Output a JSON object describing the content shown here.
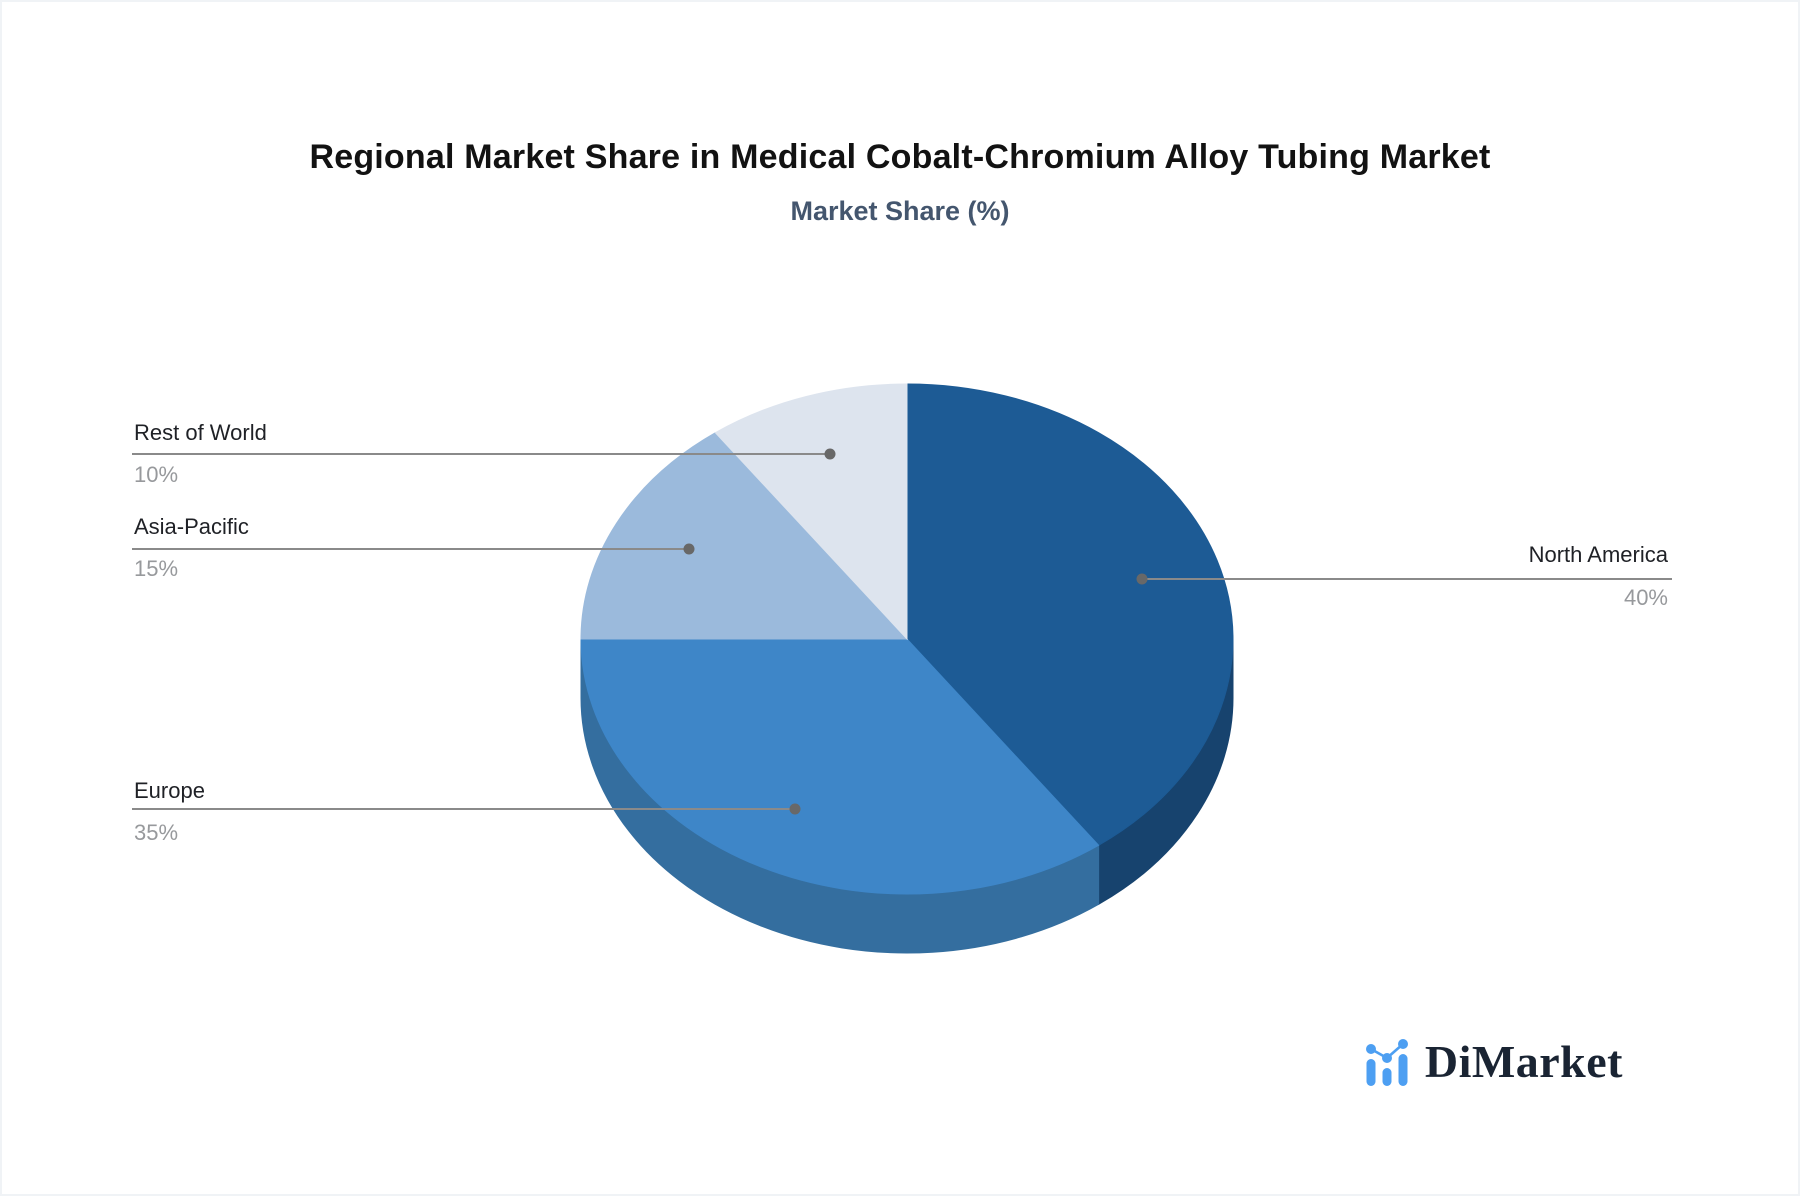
{
  "title": "Regional Market Share in Medical Cobalt-Chromium Alloy Tubing Market",
  "subtitle": "Market Share (%)",
  "brand": {
    "name": "DiMarket",
    "icon": "bar-line-chart-logo-icon",
    "icon_color": "#4d9ff2",
    "text_color": "#1a2433"
  },
  "chart_data": {
    "type": "pie",
    "title": "Regional Market Share in Medical Cobalt-Chromium Alloy Tubing Market",
    "subtitle": "Market Share (%)",
    "unit": "%",
    "style": "3d-pie",
    "start_angle_deg": 0,
    "direction": "clockwise",
    "legend_position": "none",
    "slices": [
      {
        "name": "North America",
        "value": 40,
        "value_label": "40%",
        "color": "#1d5b95",
        "side_color": "#17436e",
        "label_side": "right"
      },
      {
        "name": "Europe",
        "value": 35,
        "value_label": "35%",
        "color": "#3e86c8",
        "side_color": "#346e9f",
        "label_side": "left"
      },
      {
        "name": "Asia-Pacific",
        "value": 15,
        "value_label": "15%",
        "color": "#9bbadc",
        "label_side": "left"
      },
      {
        "name": "Rest of World",
        "value": 10,
        "value_label": "10%",
        "color": "#dde4ee",
        "label_side": "left"
      }
    ]
  },
  "colors": {
    "leader_line": "#8a8a8a",
    "leader_dot": "#686868",
    "label_text": "#1f2126",
    "value_text": "#97999c",
    "title_text": "#121212",
    "subtitle_text": "#44566e",
    "background": "#ffffff"
  }
}
